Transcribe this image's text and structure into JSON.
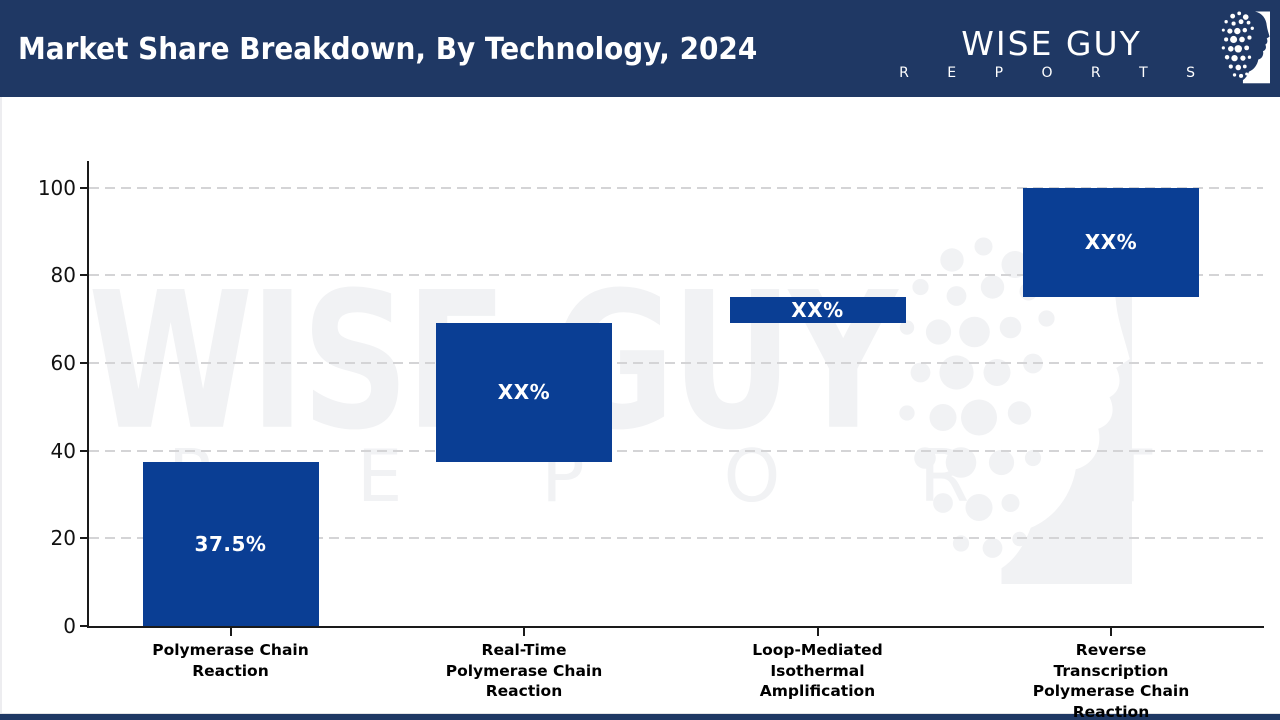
{
  "header": {
    "title": "Market Share Breakdown, By Technology, 2024",
    "bg_color": "#1f3864",
    "logo": {
      "brand": "WISE GUY",
      "sub": "R E P O R T S"
    }
  },
  "watermark": {
    "brand": "WISE GUY",
    "sub": "R E P O R T S"
  },
  "footer": {
    "bg_color": "#1f3864"
  },
  "chart_data": {
    "type": "bar",
    "variant": "waterfall",
    "title": "Market Share Breakdown, By Technology, 2024",
    "categories": [
      "Polymerase Chain Reaction",
      "Real-Time Polymerase Chain Reaction",
      "Loop-Mediated Isothermal Amplification",
      "Reverse Transcription Polymerase Chain Reaction"
    ],
    "bars": [
      {
        "category": "Polymerase Chain Reaction",
        "start": 0,
        "end": 37.5,
        "value": 37.5,
        "label": "37.5%"
      },
      {
        "category": "Real-Time Polymerase Chain Reaction",
        "start": 37.5,
        "end": 69,
        "value": 31.5,
        "label": "XX%"
      },
      {
        "category": "Loop-Mediated Isothermal Amplification",
        "start": 69,
        "end": 75,
        "value": 6,
        "label": "XX%"
      },
      {
        "category": "Reverse Transcription Polymerase Chain Reaction",
        "start": 75,
        "end": 100,
        "value": 25,
        "label": "XX%"
      }
    ],
    "xlabel": "",
    "ylabel": "",
    "yticks": [
      0,
      20,
      40,
      60,
      80,
      100
    ],
    "ylim": [
      0,
      106
    ],
    "grid": "horizontal-dashed",
    "legend": null,
    "bar_color": "#0a3e94",
    "bar_label_color": "#ffffff",
    "axis_color": "#1a1a1a",
    "gridline_color": "#d4d4d6"
  }
}
